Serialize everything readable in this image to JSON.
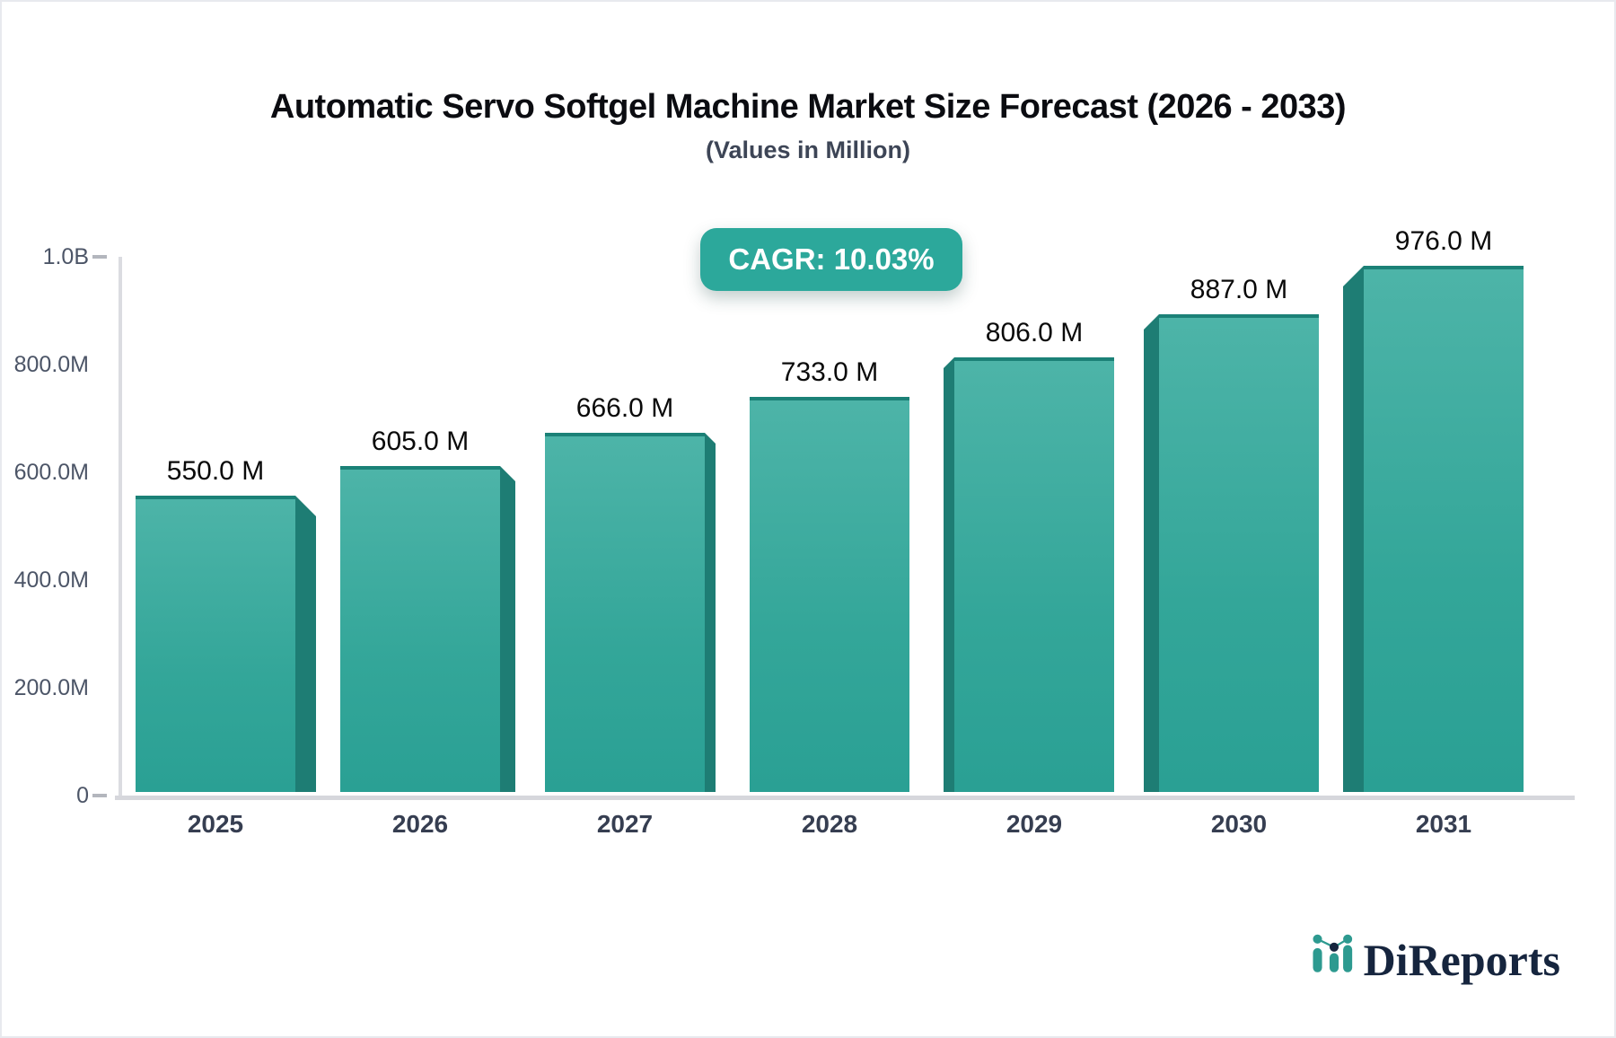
{
  "title": "Automatic Servo Softgel Machine Market Size Forecast (2026 - 2033)",
  "subtitle": "(Values in Million)",
  "cagr_label": "CAGR: 10.03%",
  "logo": {
    "text": "DiReports"
  },
  "colors": {
    "badge_teal": "#2ca89b",
    "bar_top": "#4db4a8",
    "bar_mid": "#33a699",
    "bar_bottom": "#2aa094",
    "bar_side": "#1e7d74",
    "bar_top_edge": "#1b8177",
    "axis_gray": "#d6d7dc",
    "logo_navy": "#16253e",
    "logo_teal": "#2d9a90"
  },
  "chart_data": {
    "type": "bar",
    "title": "Automatic Servo Softgel Machine Market Size Forecast (2026 - 2033)",
    "subtitle": "(Values in Million)",
    "annotation": "CAGR: 10.03%",
    "categories": [
      "2025",
      "2026",
      "2027",
      "2028",
      "2029",
      "2030",
      "2031"
    ],
    "values": [
      550,
      605,
      666,
      733,
      806,
      887,
      976
    ],
    "bar_labels": [
      "550.0 M",
      "605.0 M",
      "666.0 M",
      "733.0 M",
      "806.0 M",
      "887.0 M",
      "976.0 M"
    ],
    "xlabel": "",
    "ylabel": "",
    "ylim": [
      0,
      1000
    ],
    "grid": false,
    "legend": null,
    "y_ticks": [
      {
        "label": "0",
        "value": 0,
        "dash": true
      },
      {
        "label": "200.0M",
        "value": 200,
        "dash": false
      },
      {
        "label": "400.0M",
        "value": 400,
        "dash": false
      },
      {
        "label": "600.0M",
        "value": 600,
        "dash": false
      },
      {
        "label": "800.0M",
        "value": 800,
        "dash": false
      },
      {
        "label": "1.0B",
        "value": 1000,
        "dash": true
      }
    ]
  }
}
